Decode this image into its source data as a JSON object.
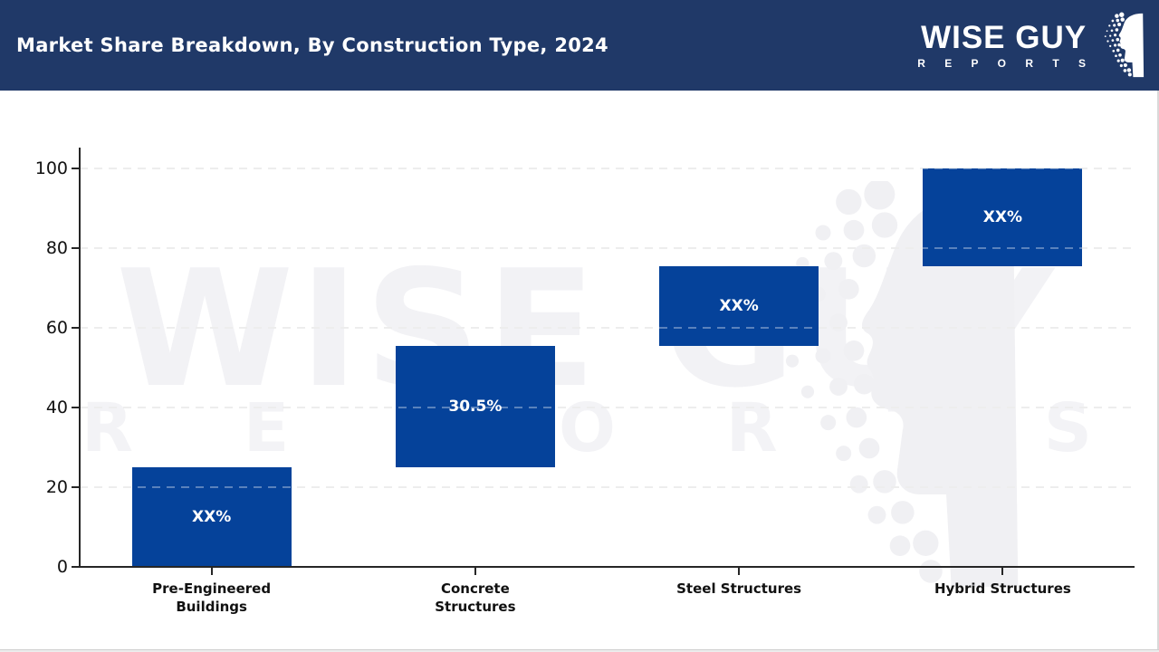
{
  "header": {
    "title": "Market Share Breakdown, By Construction Type, 2024",
    "logo": {
      "line1": "WISE GUY",
      "line2": "R E P O R T S"
    }
  },
  "watermark": {
    "line1": "WISE GUY",
    "line2": "R E P O R T S"
  },
  "chart_data": {
    "type": "bar",
    "subtype": "waterfall",
    "title": "Market Share Breakdown, By Construction Type, 2024",
    "categories": [
      "Pre-Engineered Buildings",
      "Concrete Structures",
      "Steel Structures",
      "Hybrid Structures"
    ],
    "bars": [
      {
        "category": "Pre-Engineered Buildings",
        "label_lines": [
          "Pre-Engineered",
          "Buildings"
        ],
        "start": 0,
        "end": 25,
        "height": 25,
        "value_label": "XX%"
      },
      {
        "category": "Concrete Structures",
        "label_lines": [
          "Concrete",
          "Structures"
        ],
        "start": 25,
        "end": 55.5,
        "height": 30.5,
        "value_label": "30.5%"
      },
      {
        "category": "Steel Structures",
        "label_lines": [
          "Steel Structures"
        ],
        "start": 55.5,
        "end": 75.5,
        "height": 20,
        "value_label": "XX%"
      },
      {
        "category": "Hybrid Structures",
        "label_lines": [
          "Hybrid Structures"
        ],
        "start": 75.5,
        "end": 100,
        "height": 24.5,
        "value_label": "XX%"
      }
    ],
    "yticks": [
      0,
      20,
      40,
      60,
      80,
      100
    ],
    "ylim": [
      0,
      105
    ],
    "grid": "horizontal-dashed",
    "legend": "none",
    "xlabel": "",
    "ylabel": ""
  },
  "colors": {
    "header_bg": "#203968",
    "bar": "#05429a",
    "axis": "#262626",
    "grid": "#e4e4e4",
    "title_text": "#ffffff",
    "watermark": "#f2f2f5"
  }
}
